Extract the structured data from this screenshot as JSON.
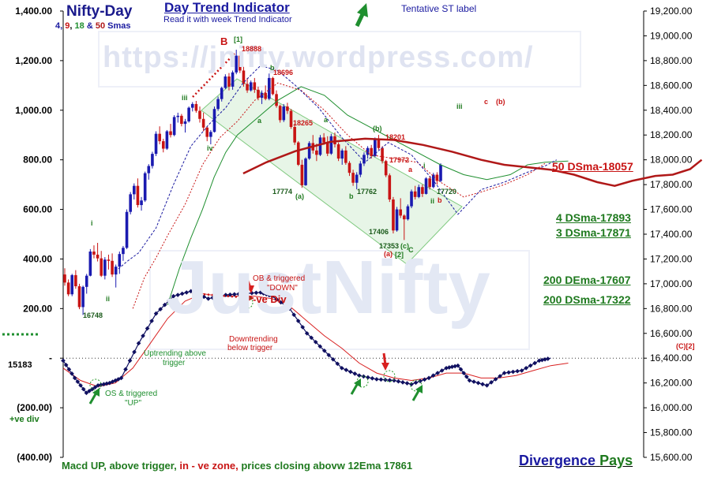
{
  "chart_title": "Nifty-Day",
  "smas": {
    "n4": "4",
    "n9": "9",
    "n18": "18",
    "amp": "&",
    "n50": "50",
    "suffix": "Smas"
  },
  "header": {
    "title": "Day Trend Indicator",
    "subtitle": "Read it with week Trend Indicator"
  },
  "tentative": "Tentative  ST label",
  "watermarks": {
    "url": "https://jnifty.wordpress.com/",
    "brand": "JustNifty"
  },
  "ma_labels": {
    "dsma50": "50 DSma-18057",
    "dsma4": "4 DSma-17893",
    "dsma3": "3 DSma-17871",
    "dema200": "200 DEma-17607",
    "dsma200": "200 DSma-17322"
  },
  "footer": {
    "p1": "Macd UP, ",
    "p2": "above trigger, ",
    "p3": "in - ve zone, ",
    "p4": "prices closing abovw 12Ema 17861"
  },
  "divergence": {
    "word1": "Divergence",
    "word2": "Pays"
  },
  "macd_value_label": "15183",
  "ve_div": "+ve div",
  "annotations": {
    "ob_triggered": "OB & triggered",
    "down": "\"DOWN\"",
    "neg_div": "-ve Div",
    "downtrending": "Downtrending",
    "below_trigger": "below trigger",
    "uptrending": "Uptrending above",
    "trigger": "trigger",
    "os_triggered": "OS & triggered",
    "up": "\"UP\""
  },
  "price_labels": {
    "p18888": "18888",
    "p18696": "18696",
    "p18265": "18265",
    "p18201": "18201",
    "p17972": "17972",
    "p17774": "17774",
    "p17762": "17762",
    "p17720": "17720",
    "p17406": "17406",
    "p17353": "17353",
    "p16748": "16748"
  },
  "wave_labels": {
    "B": "B",
    "w1": "[1]",
    "b1": "b",
    "a1": "a",
    "a2": "a",
    "iii1": "iii",
    "iv": "iv",
    "i1": "i",
    "ii1": "ii",
    "a3": "(a)",
    "b2": "b",
    "b3": "(b)",
    "a4": "a",
    "c1": "(c)",
    "w2": "[2]",
    "C": "C",
    "a5": "(a)",
    "i2": "i",
    "ii2": "ii",
    "b4": "b",
    "iii2": "iii",
    "c2": "c",
    "b5": "(b)",
    "C2": "(C)[2]"
  },
  "colors": {
    "candle_up": "#1a1ab0",
    "candle_down": "#c81414",
    "sma50": "#b01818",
    "sma18": "#1f8f2f",
    "sma9": "#c81414",
    "sma4": "#1a1aa0",
    "macd": "#101060",
    "trigger": "#d82020",
    "channel": "#d3ecd3",
    "channel_border": "#7fc97f",
    "wave_green": "#1f7a1f",
    "wave_red": "#c81414",
    "blue": "#1a1aa0"
  },
  "chart_data": {
    "type": "candlestick",
    "title": "Nifty-Day",
    "left_axis": {
      "ticks": [
        "1,400.00",
        "1,200.00",
        "1,000.00",
        "800.00",
        "600.00",
        "400.00",
        "200.00",
        "-",
        "(200.00)",
        "(400.00)"
      ],
      "ylim": [
        -400,
        1400
      ]
    },
    "right_axis": {
      "ticks": [
        "19,200.00",
        "19,000.00",
        "18,800.00",
        "18,600.00",
        "18,400.00",
        "18,200.00",
        "18,000.00",
        "17,800.00",
        "17,600.00",
        "17,400.00",
        "17,200.00",
        "17,000.00",
        "16,800.00",
        "16,600.00",
        "16,400.00",
        "16,200.00",
        "16,000.00",
        "15,800.00",
        "15,600.00"
      ],
      "ylim": [
        15600,
        19200
      ]
    },
    "candles": [
      [
        17075,
        17125,
        16985,
        17010
      ],
      [
        17010,
        17035,
        16900,
        16915
      ],
      [
        16915,
        17080,
        16900,
        17070
      ],
      [
        17070,
        17110,
        16960,
        16980
      ],
      [
        16980,
        17000,
        16795,
        16812
      ],
      [
        16812,
        16985,
        16748,
        16975
      ],
      [
        16975,
        17080,
        16920,
        17065
      ],
      [
        17065,
        17280,
        17060,
        17260
      ],
      [
        17260,
        17310,
        17205,
        17235
      ],
      [
        17235,
        17330,
        17180,
        17205
      ],
      [
        17205,
        17265,
        17055,
        17065
      ],
      [
        17065,
        17215,
        17035,
        17195
      ],
      [
        17195,
        17235,
        17115,
        17185
      ],
      [
        17185,
        17245,
        17055,
        17075
      ],
      [
        17075,
        17155,
        16970,
        17138
      ],
      [
        17138,
        17260,
        17080,
        17240
      ],
      [
        17240,
        17305,
        17185,
        17290
      ],
      [
        17290,
        17600,
        17280,
        17580
      ],
      [
        17580,
        17740,
        17560,
        17722
      ],
      [
        17722,
        17810,
        17680,
        17790
      ],
      [
        17790,
        17850,
        17615,
        17635
      ],
      [
        17635,
        17700,
        17590,
        17672
      ],
      [
        17672,
        17905,
        17660,
        17892
      ],
      [
        17892,
        17965,
        17840,
        17950
      ],
      [
        17950,
        18065,
        17930,
        18048
      ],
      [
        18048,
        18230,
        18030,
        18210
      ],
      [
        18210,
        18270,
        18125,
        18150
      ],
      [
        18150,
        18170,
        18060,
        18090
      ],
      [
        18090,
        18240,
        18080,
        18230
      ],
      [
        18230,
        18290,
        18180,
        18200
      ],
      [
        18200,
        18360,
        18190,
        18345
      ],
      [
        18345,
        18380,
        18300,
        18355
      ],
      [
        18355,
        18370,
        18270,
        18290
      ],
      [
        18290,
        18330,
        18220,
        18310
      ],
      [
        18310,
        18430,
        18300,
        18420
      ],
      [
        18420,
        18465,
        18390,
        18450
      ],
      [
        18450,
        18475,
        18380,
        18395
      ],
      [
        18395,
        18430,
        18300,
        18330
      ],
      [
        18330,
        18380,
        18230,
        18260
      ],
      [
        18260,
        18270,
        18150,
        18185
      ],
      [
        18185,
        18240,
        18125,
        18225
      ],
      [
        18225,
        18430,
        18220,
        18410
      ],
      [
        18410,
        18510,
        18395,
        18490
      ],
      [
        18490,
        18590,
        18470,
        18580
      ],
      [
        18580,
        18690,
        18570,
        18672
      ],
      [
        18672,
        18700,
        18560,
        18590
      ],
      [
        18590,
        18720,
        18565,
        18705
      ],
      [
        18705,
        18888,
        18690,
        18840
      ],
      [
        18840,
        18865,
        18700,
        18720
      ],
      [
        18720,
        18750,
        18590,
        18612
      ],
      [
        18612,
        18660,
        18540,
        18560
      ],
      [
        18560,
        18640,
        18550,
        18625
      ],
      [
        18625,
        18660,
        18540,
        18565
      ],
      [
        18565,
        18590,
        18480,
        18500
      ],
      [
        18500,
        18560,
        18450,
        18540
      ],
      [
        18540,
        18600,
        18480,
        18492
      ],
      [
        18492,
        18696,
        18480,
        18660
      ],
      [
        18660,
        18670,
        18520,
        18530
      ],
      [
        18530,
        18560,
        18420,
        18435
      ],
      [
        18435,
        18445,
        18300,
        18320
      ],
      [
        18320,
        18450,
        18305,
        18430
      ],
      [
        18430,
        18460,
        18370,
        18395
      ],
      [
        18395,
        18410,
        18250,
        18265
      ],
      [
        18265,
        18290,
        18120,
        18140
      ],
      [
        18140,
        18150,
        17950,
        17960
      ],
      [
        17960,
        18000,
        17774,
        17795
      ],
      [
        17795,
        18020,
        17790,
        18010
      ],
      [
        18010,
        18150,
        18000,
        18135
      ],
      [
        18135,
        18200,
        18050,
        18075
      ],
      [
        18075,
        18130,
        17990,
        18040
      ],
      [
        18040,
        18200,
        18030,
        18180
      ],
      [
        18180,
        18215,
        18120,
        18140
      ],
      [
        18140,
        18190,
        18030,
        18050
      ],
      [
        18050,
        18210,
        18040,
        18190
      ],
      [
        18190,
        18220,
        18100,
        18125
      ],
      [
        18125,
        18140,
        17990,
        18010
      ],
      [
        18010,
        18090,
        17960,
        18075
      ],
      [
        18075,
        18110,
        17960,
        17975
      ],
      [
        17975,
        17990,
        17870,
        17895
      ],
      [
        17895,
        17920,
        17790,
        17815
      ],
      [
        17815,
        17900,
        17762,
        17880
      ],
      [
        17880,
        17990,
        17860,
        17970
      ],
      [
        17970,
        18060,
        17950,
        18040
      ],
      [
        18040,
        18110,
        18010,
        18095
      ],
      [
        18095,
        18120,
        18010,
        18030
      ],
      [
        18030,
        18180,
        18020,
        18165
      ],
      [
        18165,
        18201,
        18080,
        18095
      ],
      [
        18095,
        18110,
        17970,
        17990
      ],
      [
        17990,
        18000,
        17860,
        17875
      ],
      [
        17875,
        17890,
        17660,
        17680
      ],
      [
        17680,
        17700,
        17406,
        17430
      ],
      [
        17430,
        17620,
        17420,
        17600
      ],
      [
        17600,
        17690,
        17530,
        17550
      ],
      [
        17550,
        17560,
        17353,
        17520
      ],
      [
        17520,
        17640,
        17510,
        17625
      ],
      [
        17625,
        17760,
        17610,
        17745
      ],
      [
        17745,
        17790,
        17680,
        17700
      ],
      [
        17700,
        17800,
        17690,
        17780
      ],
      [
        17780,
        17800,
        17700,
        17725
      ],
      [
        17725,
        17860,
        17720,
        17850
      ],
      [
        17850,
        17870,
        17760,
        17780
      ],
      [
        17780,
        17895,
        17770,
        17880
      ],
      [
        17880,
        17900,
        17800,
        17830
      ],
      [
        17830,
        17972,
        17820,
        17960
      ]
    ],
    "sma50": [
      [
        0.31,
        17890
      ],
      [
        0.35,
        17980
      ],
      [
        0.4,
        18070
      ],
      [
        0.46,
        18145
      ],
      [
        0.52,
        18170
      ],
      [
        0.57,
        18160
      ],
      [
        0.62,
        18120
      ],
      [
        0.67,
        18065
      ],
      [
        0.72,
        18000
      ],
      [
        0.76,
        17960
      ],
      [
        0.8,
        17940
      ],
      [
        0.84,
        17920
      ],
      [
        0.88,
        17880
      ],
      [
        0.92,
        17820
      ],
      [
        0.95,
        17790
      ],
      [
        0.98,
        17830
      ],
      [
        1.02,
        17870
      ],
      [
        1.05,
        17880
      ],
      [
        1.08,
        17925
      ],
      [
        1.1,
        18000
      ]
    ],
    "sma18_green": [
      [
        0.18,
        16830
      ],
      [
        0.2,
        17120
      ],
      [
        0.22,
        17370
      ],
      [
        0.24,
        17600
      ],
      [
        0.26,
        17860
      ],
      [
        0.28,
        18060
      ],
      [
        0.3,
        18200
      ],
      [
        0.33,
        18320
      ],
      [
        0.37,
        18480
      ],
      [
        0.41,
        18590
      ],
      [
        0.45,
        18520
      ],
      [
        0.49,
        18360
      ],
      [
        0.53,
        18260
      ],
      [
        0.57,
        18160
      ],
      [
        0.61,
        18060
      ],
      [
        0.65,
        17960
      ],
      [
        0.69,
        17880
      ],
      [
        0.73,
        17840
      ],
      [
        0.77,
        17880
      ],
      [
        0.8,
        17960
      ],
      [
        0.83,
        17980
      ],
      [
        0.87,
        17990
      ]
    ],
    "sma9_red": [
      [
        0.12,
        16800
      ],
      [
        0.14,
        17050
      ],
      [
        0.16,
        17210
      ],
      [
        0.18,
        17390
      ],
      [
        0.21,
        17640
      ],
      [
        0.24,
        17960
      ],
      [
        0.27,
        18180
      ],
      [
        0.3,
        18310
      ],
      [
        0.33,
        18480
      ],
      [
        0.37,
        18620
      ],
      [
        0.41,
        18560
      ],
      [
        0.45,
        18400
      ],
      [
        0.49,
        18200
      ],
      [
        0.53,
        18040
      ],
      [
        0.57,
        18010
      ],
      [
        0.61,
        17980
      ],
      [
        0.65,
        17820
      ],
      [
        0.69,
        17700
      ],
      [
        0.72,
        17740
      ],
      [
        0.76,
        17800
      ],
      [
        0.8,
        17880
      ],
      [
        0.83,
        17970
      ]
    ],
    "sma4_blue": [
      [
        0.09,
        17100
      ],
      [
        0.11,
        17180
      ],
      [
        0.13,
        17250
      ],
      [
        0.16,
        17450
      ],
      [
        0.19,
        17800
      ],
      [
        0.22,
        18110
      ],
      [
        0.25,
        18280
      ],
      [
        0.28,
        18420
      ],
      [
        0.31,
        18620
      ],
      [
        0.34,
        18760
      ],
      [
        0.37,
        18720
      ],
      [
        0.4,
        18600
      ],
      [
        0.44,
        18420
      ],
      [
        0.48,
        18180
      ],
      [
        0.52,
        17980
      ],
      [
        0.56,
        18140
      ],
      [
        0.6,
        18040
      ],
      [
        0.64,
        17820
      ],
      [
        0.68,
        17560
      ],
      [
        0.72,
        17760
      ],
      [
        0.76,
        17820
      ],
      [
        0.8,
        17900
      ],
      [
        0.83,
        17950
      ],
      [
        0.85,
        18000
      ]
    ],
    "macd": [
      [
        0,
        -10
      ],
      [
        0.02,
        -80
      ],
      [
        0.04,
        -140
      ],
      [
        0.06,
        -110
      ],
      [
        0.08,
        -100
      ],
      [
        0.1,
        -80
      ],
      [
        0.13,
        60
      ],
      [
        0.16,
        180
      ],
      [
        0.19,
        250
      ],
      [
        0.22,
        270
      ],
      [
        0.25,
        240
      ],
      [
        0.28,
        255
      ],
      [
        0.31,
        260
      ],
      [
        0.34,
        265
      ],
      [
        0.36,
        250
      ],
      [
        0.39,
        200
      ],
      [
        0.42,
        100
      ],
      [
        0.45,
        30
      ],
      [
        0.48,
        -40
      ],
      [
        0.51,
        -70
      ],
      [
        0.54,
        -85
      ],
      [
        0.57,
        -90
      ],
      [
        0.6,
        -105
      ],
      [
        0.63,
        -80
      ],
      [
        0.66,
        -40
      ],
      [
        0.68,
        -30
      ],
      [
        0.7,
        -90
      ],
      [
        0.73,
        -110
      ],
      [
        0.76,
        -60
      ],
      [
        0.79,
        -50
      ],
      [
        0.82,
        -10
      ],
      [
        0.84,
        0
      ]
    ],
    "trigger": [
      [
        0,
        -40
      ],
      [
        0.03,
        -90
      ],
      [
        0.06,
        -115
      ],
      [
        0.09,
        -100
      ],
      [
        0.12,
        -40
      ],
      [
        0.15,
        60
      ],
      [
        0.18,
        160
      ],
      [
        0.21,
        230
      ],
      [
        0.24,
        260
      ],
      [
        0.27,
        250
      ],
      [
        0.3,
        250
      ],
      [
        0.33,
        250
      ],
      [
        0.36,
        240
      ],
      [
        0.39,
        210
      ],
      [
        0.42,
        150
      ],
      [
        0.45,
        90
      ],
      [
        0.48,
        40
      ],
      [
        0.51,
        -20
      ],
      [
        0.54,
        -60
      ],
      [
        0.57,
        -80
      ],
      [
        0.6,
        -90
      ],
      [
        0.63,
        -80
      ],
      [
        0.66,
        -60
      ],
      [
        0.69,
        -60
      ],
      [
        0.72,
        -80
      ],
      [
        0.75,
        -80
      ],
      [
        0.78,
        -70
      ],
      [
        0.81,
        -50
      ],
      [
        0.84,
        -30
      ],
      [
        0.87,
        -20
      ]
    ]
  }
}
